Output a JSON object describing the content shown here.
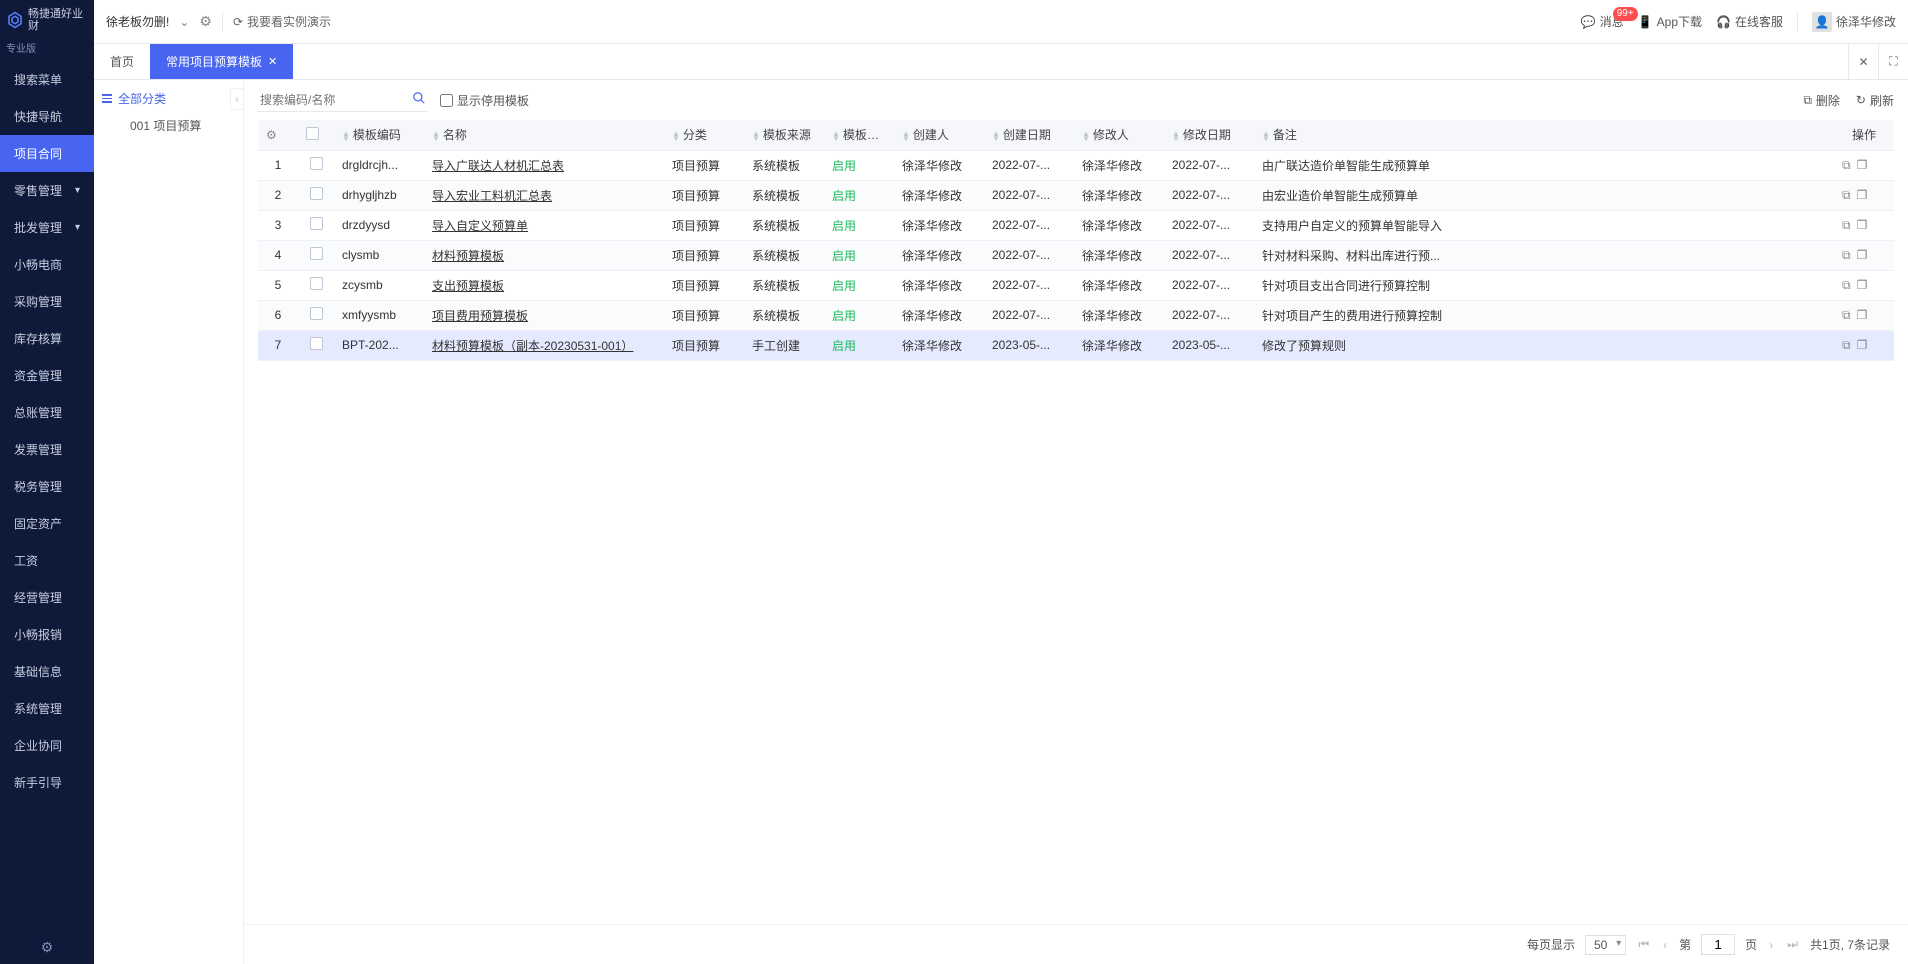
{
  "brand": {
    "name": "畅捷通好业财",
    "edition": "专业版"
  },
  "sidebar": {
    "items": [
      {
        "label": "搜索菜单",
        "active": false,
        "caret": false
      },
      {
        "label": "快捷导航",
        "active": false,
        "caret": false
      },
      {
        "label": "项目合同",
        "active": true,
        "caret": false
      },
      {
        "label": "零售管理",
        "active": false,
        "caret": true
      },
      {
        "label": "批发管理",
        "active": false,
        "caret": true
      },
      {
        "label": "小畅电商",
        "active": false,
        "caret": false
      },
      {
        "label": "采购管理",
        "active": false,
        "caret": false
      },
      {
        "label": "库存核算",
        "active": false,
        "caret": false
      },
      {
        "label": "资金管理",
        "active": false,
        "caret": false
      },
      {
        "label": "总账管理",
        "active": false,
        "caret": false
      },
      {
        "label": "发票管理",
        "active": false,
        "caret": false
      },
      {
        "label": "税务管理",
        "active": false,
        "caret": false
      },
      {
        "label": "固定资产",
        "active": false,
        "caret": false
      },
      {
        "label": "工资",
        "active": false,
        "caret": false
      },
      {
        "label": "经营管理",
        "active": false,
        "caret": false
      },
      {
        "label": "小畅报销",
        "active": false,
        "caret": false
      },
      {
        "label": "基础信息",
        "active": false,
        "caret": false
      },
      {
        "label": "系统管理",
        "active": false,
        "caret": false
      },
      {
        "label": "企业协同",
        "active": false,
        "caret": false
      },
      {
        "label": "新手引导",
        "active": false,
        "caret": false
      }
    ]
  },
  "topbar": {
    "owner_label": "徐老板勿删!",
    "demo_label": "我要看实例演示",
    "msg_label": "消息",
    "msg_badge": "99+",
    "app_label": "App下载",
    "service_label": "在线客服",
    "user_name": "徐泽华修改"
  },
  "tabs": {
    "home_label": "首页",
    "active_label": "常用项目预算模板"
  },
  "category": {
    "all_label": "全部分类",
    "items": [
      {
        "label": "001 项目预算"
      }
    ]
  },
  "toolbar": {
    "search_placeholder": "搜索编码/名称",
    "show_disabled_label": "显示停用模板",
    "delete_label": "删除",
    "refresh_label": "刷新"
  },
  "table": {
    "headers": {
      "code": "模板编码",
      "name": "名称",
      "cat": "分类",
      "src": "模板来源",
      "status": "模板状态",
      "creator": "创建人",
      "cdate": "创建日期",
      "mod": "修改人",
      "mdate": "修改日期",
      "remark": "备注",
      "ops": "操作"
    },
    "rows": [
      {
        "idx": "1",
        "code": "drgldrcjh...",
        "name": "导入广联达人材机汇总表",
        "cat": "项目预算",
        "src": "系统模板",
        "status": "启用",
        "creator": "徐泽华修改",
        "cdate": "2022-07-...",
        "mod": "徐泽华修改",
        "mdate": "2022-07-...",
        "remark": "由广联达造价单智能生成预算单"
      },
      {
        "idx": "2",
        "code": "drhygljhzb",
        "name": "导入宏业工料机汇总表",
        "cat": "项目预算",
        "src": "系统模板",
        "status": "启用",
        "creator": "徐泽华修改",
        "cdate": "2022-07-...",
        "mod": "徐泽华修改",
        "mdate": "2022-07-...",
        "remark": "由宏业造价单智能生成预算单"
      },
      {
        "idx": "3",
        "code": "drzdyysd",
        "name": "导入自定义预算单",
        "cat": "项目预算",
        "src": "系统模板",
        "status": "启用",
        "creator": "徐泽华修改",
        "cdate": "2022-07-...",
        "mod": "徐泽华修改",
        "mdate": "2022-07-...",
        "remark": "支持用户自定义的预算单智能导入"
      },
      {
        "idx": "4",
        "code": "clysmb",
        "name": "材料预算模板",
        "cat": "项目预算",
        "src": "系统模板",
        "status": "启用",
        "creator": "徐泽华修改",
        "cdate": "2022-07-...",
        "mod": "徐泽华修改",
        "mdate": "2022-07-...",
        "remark": "针对材料采购、材料出库进行预..."
      },
      {
        "idx": "5",
        "code": "zcysmb",
        "name": "支出预算模板",
        "cat": "项目预算",
        "src": "系统模板",
        "status": "启用",
        "creator": "徐泽华修改",
        "cdate": "2022-07-...",
        "mod": "徐泽华修改",
        "mdate": "2022-07-...",
        "remark": "针对项目支出合同进行预算控制"
      },
      {
        "idx": "6",
        "code": "xmfyysmb",
        "name": "项目费用预算模板",
        "cat": "项目预算",
        "src": "系统模板",
        "status": "启用",
        "creator": "徐泽华修改",
        "cdate": "2022-07-...",
        "mod": "徐泽华修改",
        "mdate": "2022-07-...",
        "remark": "针对项目产生的费用进行预算控制"
      },
      {
        "idx": "7",
        "code": "BPT-202...",
        "name": "材料预算模板（副本-20230531-001）",
        "cat": "项目预算",
        "src": "手工创建",
        "status": "启用",
        "creator": "徐泽华修改",
        "cdate": "2023-05-...",
        "mod": "徐泽华修改",
        "mdate": "2023-05-...",
        "remark": "修改了预算规则"
      }
    ]
  },
  "pagination": {
    "per_page_label": "每页显示",
    "per_page_value": "50",
    "page_label_prefix": "第",
    "page_input": "1",
    "page_label_suffix": "页",
    "total_label": "共1页, 7条记录"
  },
  "colors": {
    "sidebar_bg": "#0f1a3a",
    "accent": "#4765f0",
    "status_on": "#1cb85c",
    "badge": "#ff4d4f",
    "border": "#e5e8ef"
  }
}
